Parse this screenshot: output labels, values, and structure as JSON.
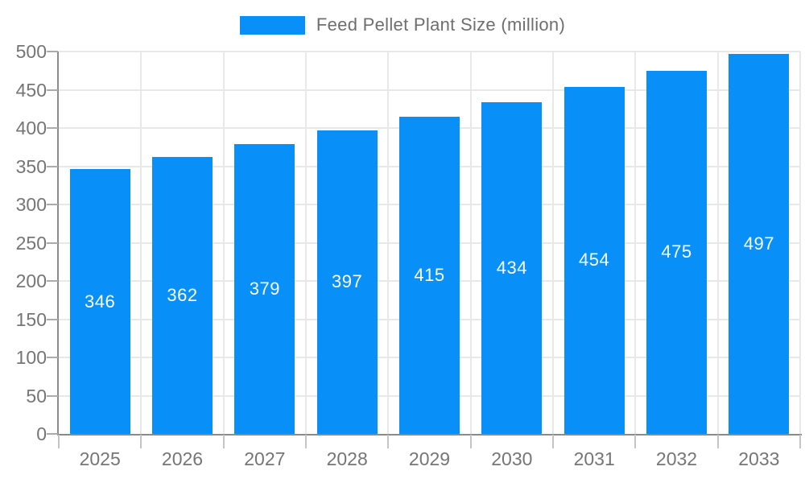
{
  "chart_data": {
    "type": "bar",
    "series_name": "Feed Pellet Plant Size (million)",
    "categories": [
      "2025",
      "2026",
      "2027",
      "2028",
      "2029",
      "2030",
      "2031",
      "2032",
      "2033"
    ],
    "values": [
      346,
      362,
      379,
      397,
      415,
      434,
      454,
      475,
      497
    ],
    "title": "",
    "xlabel": "",
    "ylabel": "",
    "ylim": [
      0,
      500
    ],
    "ytick_step": 50,
    "yticks": [
      0,
      50,
      100,
      150,
      200,
      250,
      300,
      350,
      400,
      450,
      500
    ],
    "grid": true,
    "legend_position": "top-center",
    "bar_color": "#0890f8",
    "value_label_color": "#ffffff",
    "axis_text_color": "#757575"
  }
}
